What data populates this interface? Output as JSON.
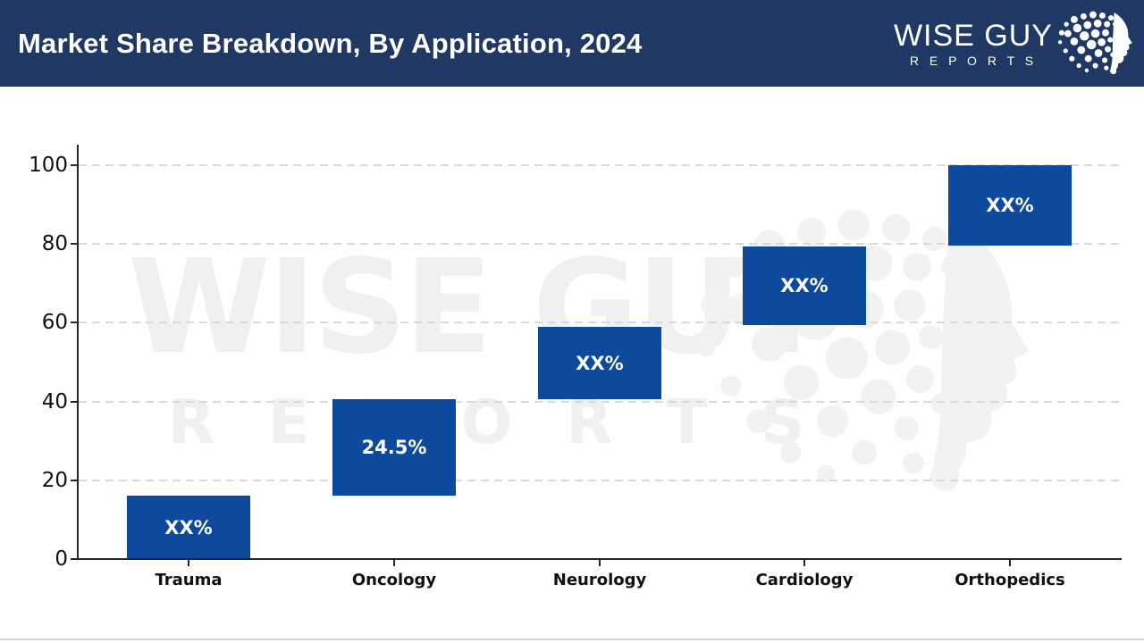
{
  "header": {
    "title": "Market Share Breakdown, By Application, 2024",
    "background": "#1f3864",
    "logo": {
      "line1": "WISE GUY",
      "line2": "R E P O R T S"
    }
  },
  "watermark": {
    "line1": "WISE GUY",
    "line2": "R E P O R T S"
  },
  "chart_data": {
    "type": "bar",
    "subtype": "floating-waterfall",
    "title": "Market Share Breakdown, By Application, 2024",
    "xlabel": "",
    "ylabel": "",
    "categories": [
      "Trauma",
      "Oncology",
      "Neurology",
      "Cardiology",
      "Orthopedics"
    ],
    "segments": [
      {
        "category": "Trauma",
        "start": 0,
        "end": 16,
        "label": "XX%"
      },
      {
        "category": "Oncology",
        "start": 16,
        "end": 40.5,
        "label": "24.5%"
      },
      {
        "category": "Neurology",
        "start": 40.5,
        "end": 59,
        "label": "XX%"
      },
      {
        "category": "Cardiology",
        "start": 59.3,
        "end": 79.4,
        "label": "XX%"
      },
      {
        "category": "Orthopedics",
        "start": 79.6,
        "end": 100,
        "label": "XX%"
      }
    ],
    "y_ticks": [
      0,
      20,
      40,
      60,
      80,
      100
    ],
    "ylim": [
      0,
      105
    ],
    "grid": "horizontal-dashed",
    "legend": "none",
    "bar_color": "#0d4a9e",
    "bar_label_color": "#ffffff",
    "gridline_color": "#d9d9d9",
    "axis_color": "#262626"
  }
}
